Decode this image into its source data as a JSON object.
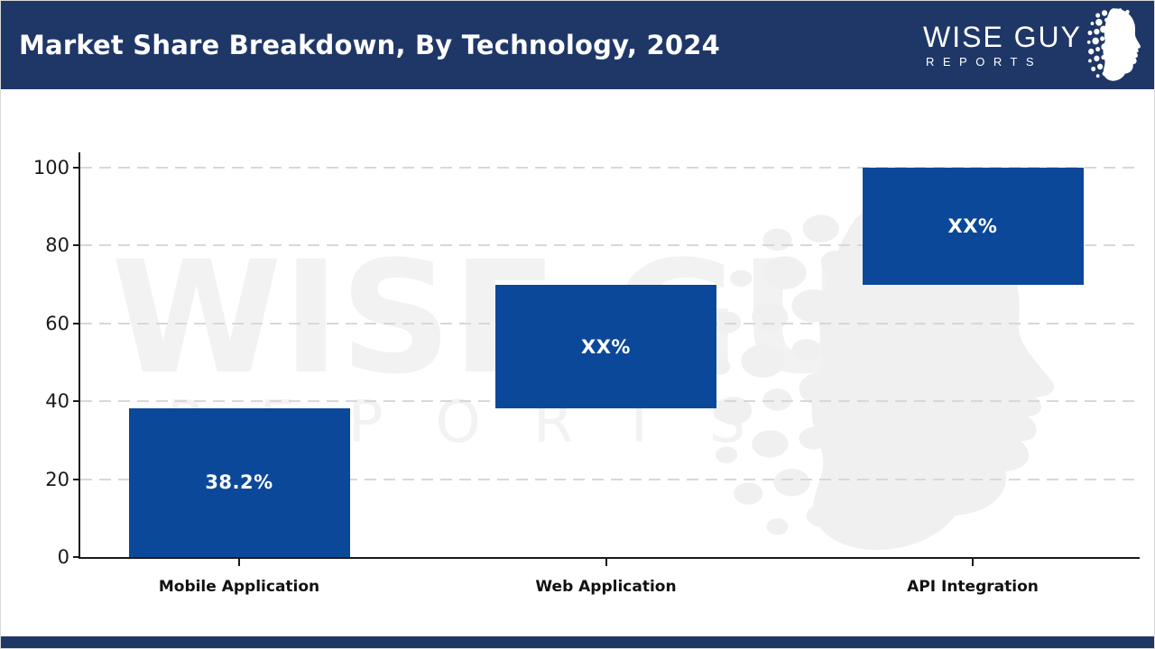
{
  "header": {
    "title": "Market Share Breakdown, By Technology, 2024",
    "logo": {
      "line1": "WISE GUY",
      "line2": "REPORTS"
    }
  },
  "watermark": {
    "line1": "WISE GUY",
    "line2": "REPORTS"
  },
  "colors": {
    "header_bg": "#1F3767",
    "bar": "#0C4899",
    "axis": "#1A1A1A",
    "grid": "#D8D8D8",
    "watermark": "#F2F2F2",
    "bar_label": "#FFFFFF",
    "tick_label": "#1A1A1A"
  },
  "chart_data": {
    "type": "bar",
    "subtype": "floating-waterfall",
    "title": "Market Share Breakdown, By Technology, 2024",
    "categories": [
      "Mobile Application",
      "Web Application",
      "API Integration"
    ],
    "bars": [
      {
        "category": "Mobile Application",
        "label": "38.2%",
        "start": 0,
        "end": 38.2
      },
      {
        "category": "Web Application",
        "label": "XX%",
        "start": 38.2,
        "end": 69.9
      },
      {
        "category": "API Integration",
        "label": "XX%",
        "start": 69.9,
        "end": 100
      }
    ],
    "xlabel": "",
    "ylabel": "",
    "ylim": [
      0,
      100
    ],
    "yticks": [
      0,
      20,
      40,
      60,
      80,
      100
    ],
    "grid": true,
    "legend": false
  }
}
